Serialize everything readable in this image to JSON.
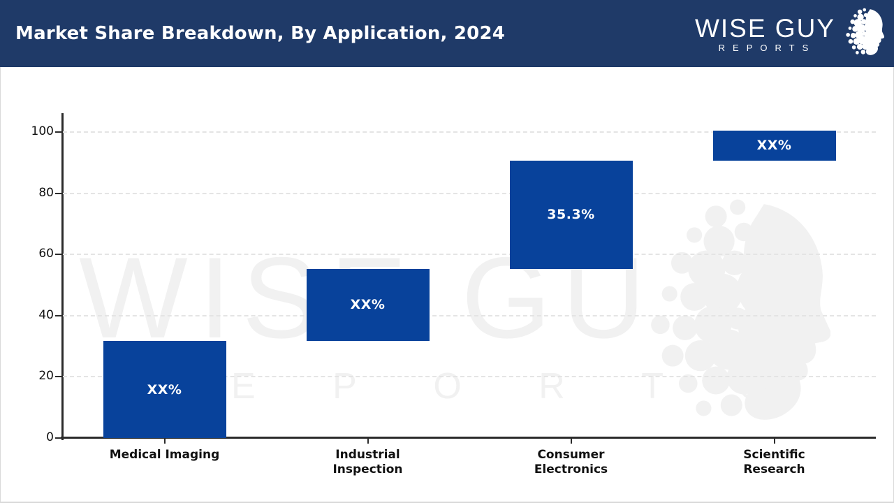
{
  "header": {
    "title": "Market Share Breakdown, By Application, 2024",
    "logo": {
      "line1": "WISE GUY",
      "line2": "REPORTS"
    }
  },
  "watermark": {
    "line1": "WISE GU",
    "line2": "R E P O R T S"
  },
  "chart_data": {
    "type": "bar",
    "subtype": "floating-waterfall",
    "title": "Market Share Breakdown, By Application, 2024",
    "categories": [
      "Medical Imaging",
      "Industrial\nInspection",
      "Consumer\nElectronics",
      "Scientific\nResearch"
    ],
    "segments": [
      {
        "category": "Medical Imaging",
        "from": 0,
        "to": 31.7,
        "value": 31.7,
        "label": "XX%"
      },
      {
        "category": "Industrial Inspection",
        "from": 31.7,
        "to": 55.3,
        "value": 23.6,
        "label": "XX%"
      },
      {
        "category": "Consumer Electronics",
        "from": 55.3,
        "to": 90.6,
        "value": 35.3,
        "label": "35.3%"
      },
      {
        "category": "Scientific Research",
        "from": 90.6,
        "to": 100.5,
        "value": 9.9,
        "label": "XX%"
      }
    ],
    "xlabel": "",
    "ylabel": "",
    "ylim": [
      0,
      100
    ],
    "yticks": [
      0,
      20,
      40,
      60,
      80,
      100
    ],
    "grid": "horizontal-dashed",
    "legend": "none",
    "unit": "percent"
  },
  "colors": {
    "header_bg": "#1f3a68",
    "bar_fill": "#08429b",
    "bar_label": "#ffffff",
    "grid": "#e4e4e4",
    "axis": "#2b2b2b",
    "text": "#111111",
    "watermark": "#f1f1f1",
    "card_border": "#d9d9d9"
  }
}
